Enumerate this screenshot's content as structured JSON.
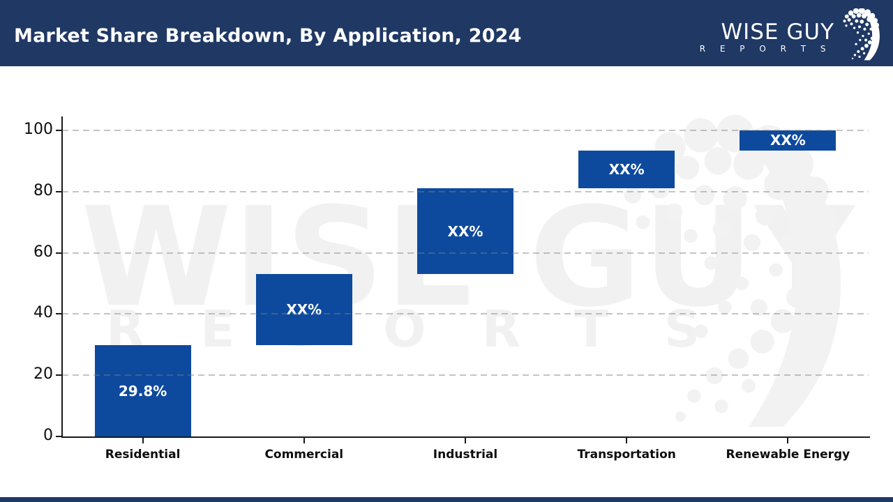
{
  "header": {
    "title": "Market Share Breakdown, By Application, 2024",
    "logo": {
      "line1": "WISE GUY",
      "line2": "R E P O R T S"
    }
  },
  "watermark": {
    "line1": "WISE GUY",
    "line2": "REPORTS"
  },
  "theme": {
    "header_bg": "#1f3864",
    "bar_color": "#0d4a9e",
    "bar_label_color": "#ffffff",
    "axis_color": "#1a1a1a",
    "gridline_color": "#c9c9c9",
    "watermark_color": "#f1f1f1"
  },
  "chart_data": {
    "type": "bar",
    "subtype": "waterfall",
    "title": "Market Share Breakdown, By Application, 2024",
    "xlabel": "",
    "ylabel": "",
    "categories": [
      "Residential",
      "Commercial",
      "Industrial",
      "Transportation",
      "Renewable Energy"
    ],
    "segments": [
      {
        "category": "Residential",
        "start": 0,
        "end": 29.8,
        "value": 29.8,
        "label": "29.8%"
      },
      {
        "category": "Commercial",
        "start": 29.8,
        "end": 53.1,
        "value": 23.3,
        "label": "XX%"
      },
      {
        "category": "Industrial",
        "start": 53.1,
        "end": 81.0,
        "value": 27.9,
        "label": "XX%"
      },
      {
        "category": "Transportation",
        "start": 81.0,
        "end": 93.4,
        "value": 12.4,
        "label": "XX%"
      },
      {
        "category": "Renewable Energy",
        "start": 93.4,
        "end": 100.0,
        "value": 6.6,
        "label": "XX%"
      }
    ],
    "y_ticks": [
      0,
      20,
      40,
      60,
      80,
      100
    ],
    "ylim": [
      0,
      104.5
    ],
    "grid": "horizontal dashed, drawn above bars",
    "legend": "none"
  }
}
